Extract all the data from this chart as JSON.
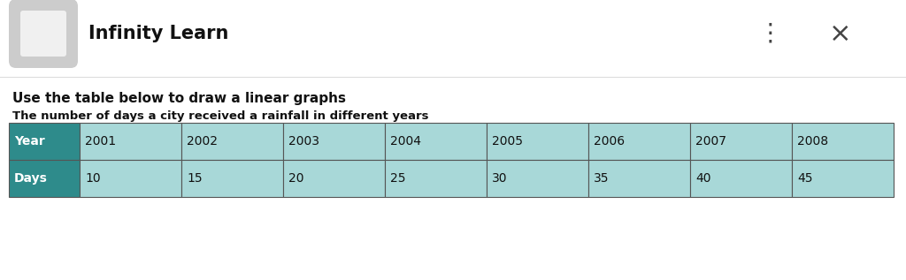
{
  "title": "Infinity Learn",
  "instruction": "Use the table below to draw a linear graphs",
  "subtitle": "The number of days a city received a rainfall in different years",
  "header_row": [
    "Year",
    "2001",
    "2002",
    "2003",
    "2004",
    "2005",
    "2006",
    "2007",
    "2008"
  ],
  "data_row": [
    "Days",
    "10",
    "15",
    "20",
    "25",
    "30",
    "35",
    "40",
    "45"
  ],
  "label_bg": "#2e8b8b",
  "data_bg": "#a8d8d8",
  "label_text_color": "#ffffff",
  "data_text_color": "#111111",
  "border_color": "#555555",
  "bg_color": "#f5f5f5",
  "title_fontsize": 15,
  "instruction_fontsize": 11,
  "subtitle_fontsize": 9.5,
  "table_fontsize": 10,
  "dots_color": "#444444",
  "x_color": "#444444",
  "logo_outer": "#cccccc",
  "logo_inner": "#f0f0f0"
}
